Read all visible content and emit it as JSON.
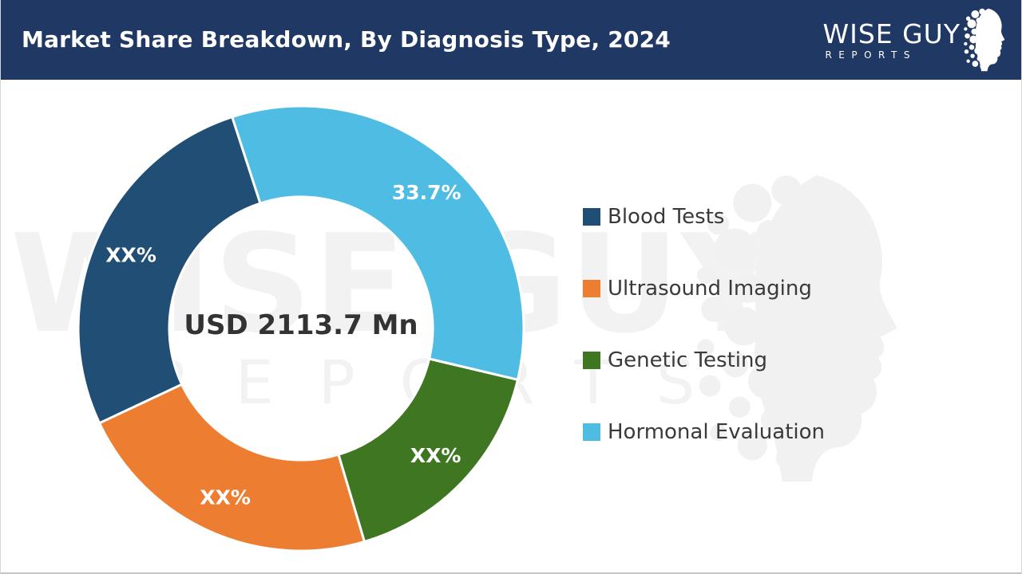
{
  "header": {
    "title": "Market Share Breakdown, By Diagnosis Type, 2024",
    "logo": {
      "name": "WISE GUY",
      "tagline": "REPORTS"
    }
  },
  "watermark": {
    "line1": "WISE GUY",
    "line2": "REPORTS"
  },
  "chart_data": {
    "type": "pie",
    "subtype": "donut",
    "title": "Market Share Breakdown, By Diagnosis Type, 2024",
    "center_label": "USD 2113.7 Mn",
    "start_angle_deg": 108,
    "direction": "counterclockwise",
    "inner_radius_ratio": 0.59,
    "legend_position": "right",
    "slices": [
      {
        "label": "Blood Tests",
        "display_value": "XX%",
        "value_pct": 27.0,
        "color": "#204E75"
      },
      {
        "label": "Ultrasound Imaging",
        "display_value": "XX%",
        "value_pct": 22.6,
        "color": "#ED7D31"
      },
      {
        "label": "Genetic Testing",
        "display_value": "XX%",
        "value_pct": 16.7,
        "color": "#3F7622"
      },
      {
        "label": "Hormonal Evaluation",
        "display_value": "33.7%",
        "value_pct": 33.7,
        "color": "#4FBCE3"
      }
    ]
  }
}
